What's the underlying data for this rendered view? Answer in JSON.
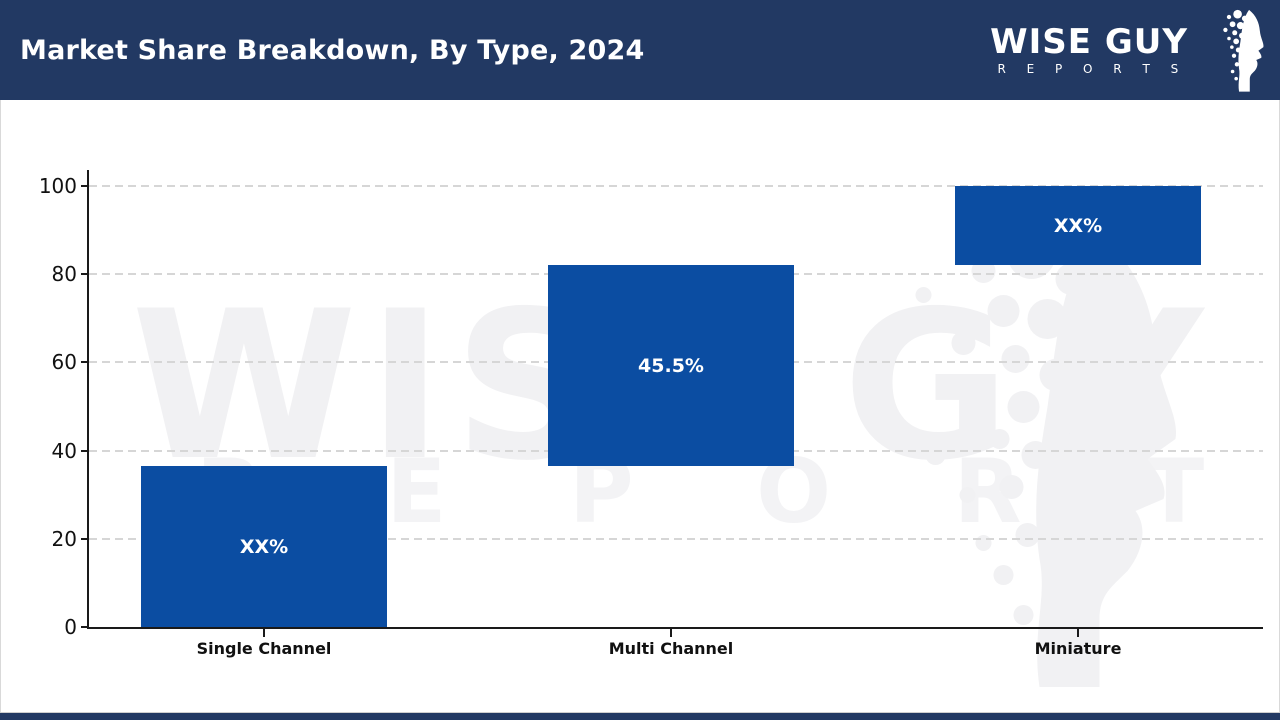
{
  "header": {
    "title": "Market Share Breakdown, By Type, 2024",
    "logo": {
      "line1": "WISE GUY",
      "line2": "R E P O R T S"
    }
  },
  "watermark": {
    "word1": "WISE G",
    "word1b": "Y",
    "word2": "R E P O R T S"
  },
  "chart_data": {
    "type": "bar",
    "subtype": "floating-waterfall",
    "title": "Market Share Breakdown, By Type, 2024",
    "categories": [
      "Single Channel",
      "Multi Channel",
      "Miniature"
    ],
    "bars": [
      {
        "category": "Single Channel",
        "start": 0,
        "end": 36.5,
        "value": 36.5,
        "label": "XX%"
      },
      {
        "category": "Multi Channel",
        "start": 36.5,
        "end": 82,
        "value": 45.5,
        "label": "45.5%"
      },
      {
        "category": "Miniature",
        "start": 82,
        "end": 100,
        "value": 18,
        "label": "XX%"
      }
    ],
    "yticks": [
      0,
      20,
      40,
      60,
      80,
      100
    ],
    "ylim": [
      0,
      103.5
    ],
    "xlabel": "",
    "ylabel": "",
    "grid": "horizontal-dashed",
    "legend": "none",
    "bar_color": "#0b4da2",
    "bar_label_color": "#ffffff",
    "axis_color": "#1a1a1a",
    "grid_color": "#d6d6d6"
  },
  "colors": {
    "header_bg": "#223963",
    "footer_bg": "#223963",
    "watermark": "#f1f1f3"
  }
}
